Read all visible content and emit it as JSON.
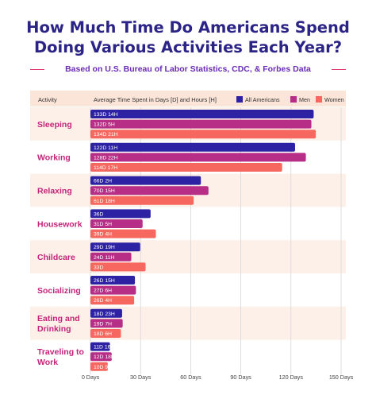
{
  "title_line1": "How Much Time Do Americans Spend",
  "title_line2": "Doing Various Activities Each Year?",
  "subtitle": "Based on U.S. Bureau of Labor Statistics, CDC, & Forbes Data",
  "colors": {
    "title": "#2b2486",
    "all": "#2d22a3",
    "men": "#b72e86",
    "women": "#f6685f",
    "band": "#fdf0e8",
    "header_band": "#fbe4d8",
    "category_text": "#c2257a"
  },
  "chart_data": {
    "type": "bar",
    "orientation": "horizontal",
    "header_activity": "Activity",
    "header_axis": "Average Time Spent in Days [D] and Hours [H]",
    "unit": "days",
    "xlim": [
      0,
      150
    ],
    "x_ticks": [
      0,
      30,
      60,
      90,
      120,
      150
    ],
    "x_tick_labels": [
      "0 Days",
      "30 Days",
      "60 Days",
      "90 Days",
      "120 Days",
      "150 Days"
    ],
    "legend_position": "top-right",
    "categories": [
      "Sleeping",
      "Working",
      "Relaxing",
      "Housework",
      "Childcare",
      "Socializing",
      "Eating and Drinking",
      "Traveling to Work"
    ],
    "series": [
      {
        "name": "All Americans",
        "color_key": "all",
        "values": [
          133.58,
          122.46,
          66.08,
          36,
          29.79,
          26.63,
          18.96,
          11.67
        ],
        "labels": [
          "133D 14H",
          "122D 11H",
          "66D 2H",
          "36D",
          "29D 19H",
          "26D 15H",
          "18D 23H",
          "11D 16H"
        ]
      },
      {
        "name": "Men",
        "color_key": "men",
        "values": [
          132.21,
          128.92,
          70.63,
          31.21,
          24.46,
          27.25,
          19.29,
          12.75
        ],
        "labels": [
          "132D 5H",
          "128D 22H",
          "70D 15H",
          "31D 5H",
          "24D 11H",
          "27D 6H",
          "19D 7H",
          "12D 18H"
        ]
      },
      {
        "name": "Women",
        "color_key": "women",
        "values": [
          134.88,
          114.71,
          61.75,
          39.17,
          33,
          26.17,
          18.25,
          10.38
        ],
        "labels": [
          "134D 21H",
          "114D 17H",
          "61D 18H",
          "39D 4H",
          "33D",
          "26D 4H",
          "18D 6H",
          "10D 9H"
        ]
      }
    ]
  }
}
